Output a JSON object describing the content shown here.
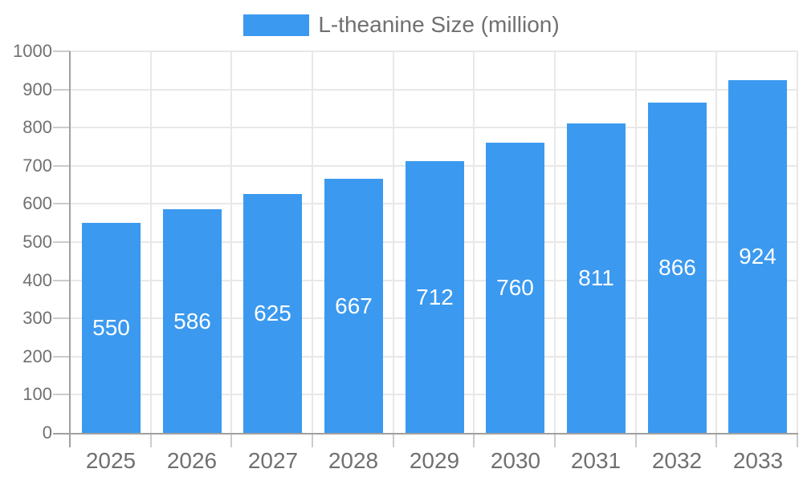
{
  "chart_data": {
    "type": "bar",
    "title": "",
    "legend": "L-theanine Size (million)",
    "legend_position": "top-center",
    "categories": [
      "2025",
      "2026",
      "2027",
      "2028",
      "2029",
      "2030",
      "2031",
      "2032",
      "2033"
    ],
    "values": [
      550,
      586,
      625,
      667,
      712,
      760,
      811,
      866,
      924
    ],
    "xlabel": "",
    "ylabel": "",
    "ylim": [
      0,
      1000
    ],
    "y_ticks": [
      0,
      100,
      200,
      300,
      400,
      500,
      600,
      700,
      800,
      900,
      1000
    ],
    "grid": true,
    "colors": {
      "bar": "#3B99EF",
      "grid": "#E8E8E8",
      "tick": "#CCCCCC",
      "axis": "#A0A0A0",
      "axis_text": "#707070",
      "value_text": "#FFFFFF",
      "background": "#FFFFFF"
    }
  }
}
